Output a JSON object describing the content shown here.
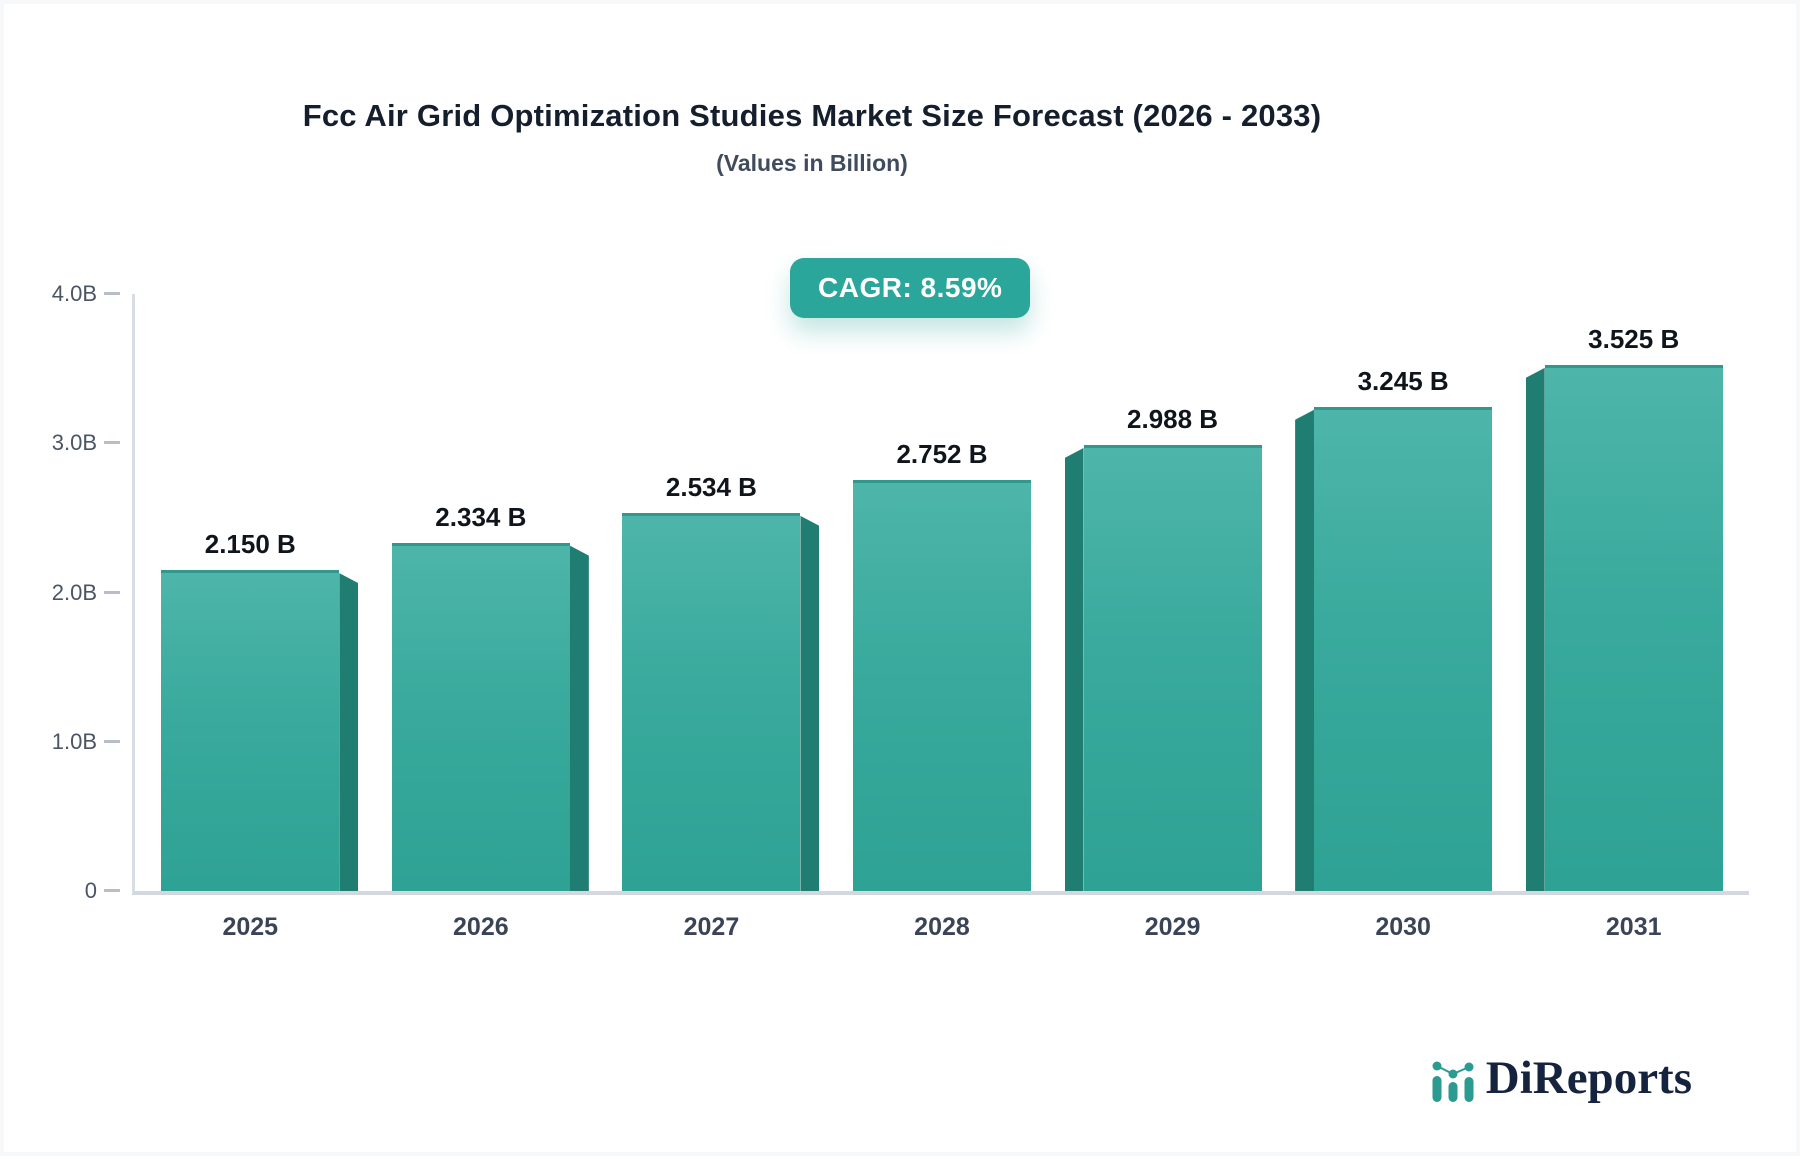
{
  "page": {
    "background": "#f7f8fa",
    "card_background": "#ffffff"
  },
  "header": {
    "title": "Fcc Air Grid Optimization Studies Market Size Forecast (2026 - 2033)",
    "subtitle": "(Values in Billion)"
  },
  "badge": {
    "label": "CAGR: 8.59%",
    "background": "#2aa79a",
    "text_color": "#ffffff"
  },
  "chart_data": {
    "type": "bar",
    "title": "Fcc Air Grid Optimization Studies Market Size Forecast (2026 - 2033)",
    "subtitle": "(Values in Billion)",
    "unit": "Billion",
    "cagr": "8.59%",
    "categories": [
      "2025",
      "2026",
      "2027",
      "2028",
      "2029",
      "2030",
      "2031"
    ],
    "values": [
      2.15,
      2.334,
      2.534,
      2.752,
      2.988,
      3.245,
      3.525
    ],
    "value_labels": [
      "2.150 B",
      "2.334 B",
      "2.534 B",
      "2.752 B",
      "2.988 B",
      "3.245 B",
      "3.525 B"
    ],
    "xlabel": "",
    "ylabel": "",
    "ylim": [
      0,
      4.0
    ],
    "yticks": {
      "values": [
        0,
        1,
        2,
        3,
        4
      ],
      "labels": [
        "0",
        "1.0B",
        "2.0B",
        "3.0B",
        "4.0B"
      ]
    },
    "grid": false,
    "legend": false,
    "bar_color_top": "#4eb5aa",
    "bar_color_bottom": "#2ea294",
    "bar_side_color": "#1f7d72",
    "axis_color": "#d3d7de",
    "tick_color": "#b7bdc9",
    "tick_label_color": "#4b5566",
    "category_label_color": "#3b4457",
    "value_label_color": "#10151c"
  },
  "logo": {
    "text": "DiReports",
    "icon": "bar-chart-logo-icon",
    "text_color": "#15233f",
    "icon_color": "#2b9a91"
  }
}
